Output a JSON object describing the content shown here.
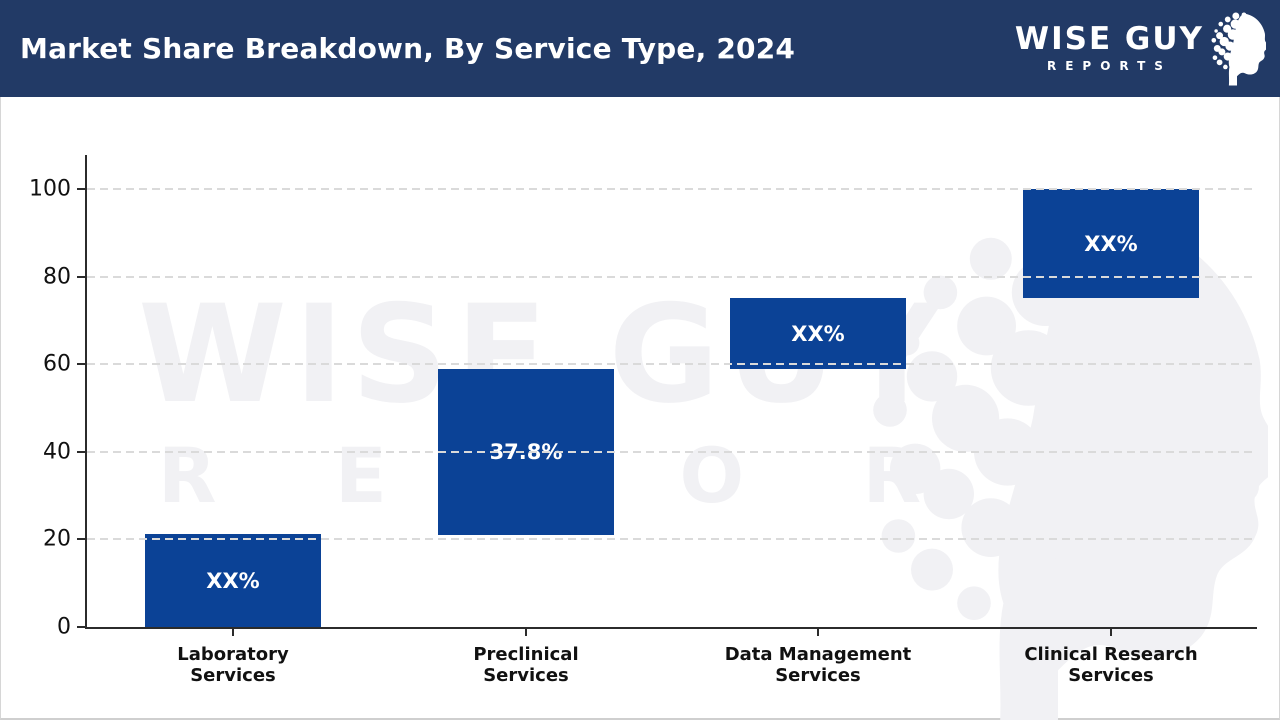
{
  "header": {
    "title": "Market Share Breakdown, By Service Type, 2024",
    "logo": {
      "line1": "WISE GUY",
      "line2": "REPORTS"
    }
  },
  "watermark": {
    "line1": "WISE GUY",
    "line2": "R E P O R T S"
  },
  "colors": {
    "header_bg": "#223a66",
    "bar": "#0b4296",
    "grid": "#dadada",
    "axis": "#2b2b2b",
    "tick_text": "#111111",
    "bar_label_text": "#ffffff",
    "watermark": "#f1f1f4",
    "logo_text": "#ffffff"
  },
  "chart_data": {
    "type": "bar",
    "subtype": "floating-waterfall",
    "title": "Market Share Breakdown, By Service Type, 2024",
    "xlabel": "",
    "ylabel": "",
    "ylim": [
      0,
      100
    ],
    "yticks": [
      0,
      20,
      40,
      60,
      80,
      100
    ],
    "grid": "horizontal-dashed",
    "legend": "none",
    "categories": [
      "Laboratory\nServices",
      "Preclinical\nServices",
      "Data Management\nServices",
      "Clinical Research\nServices"
    ],
    "bars": [
      {
        "category": "Laboratory Services",
        "start": 0,
        "end": 21.2,
        "value": 21.2,
        "label": "XX%"
      },
      {
        "category": "Preclinical Services",
        "start": 21.2,
        "end": 59.0,
        "value": 37.8,
        "label": "37.8%"
      },
      {
        "category": "Data Management Services",
        "start": 59.0,
        "end": 75.2,
        "value": 16.2,
        "label": "XX%"
      },
      {
        "category": "Clinical Research Services",
        "start": 75.2,
        "end": 100.0,
        "value": 24.8,
        "label": "XX%"
      }
    ]
  }
}
